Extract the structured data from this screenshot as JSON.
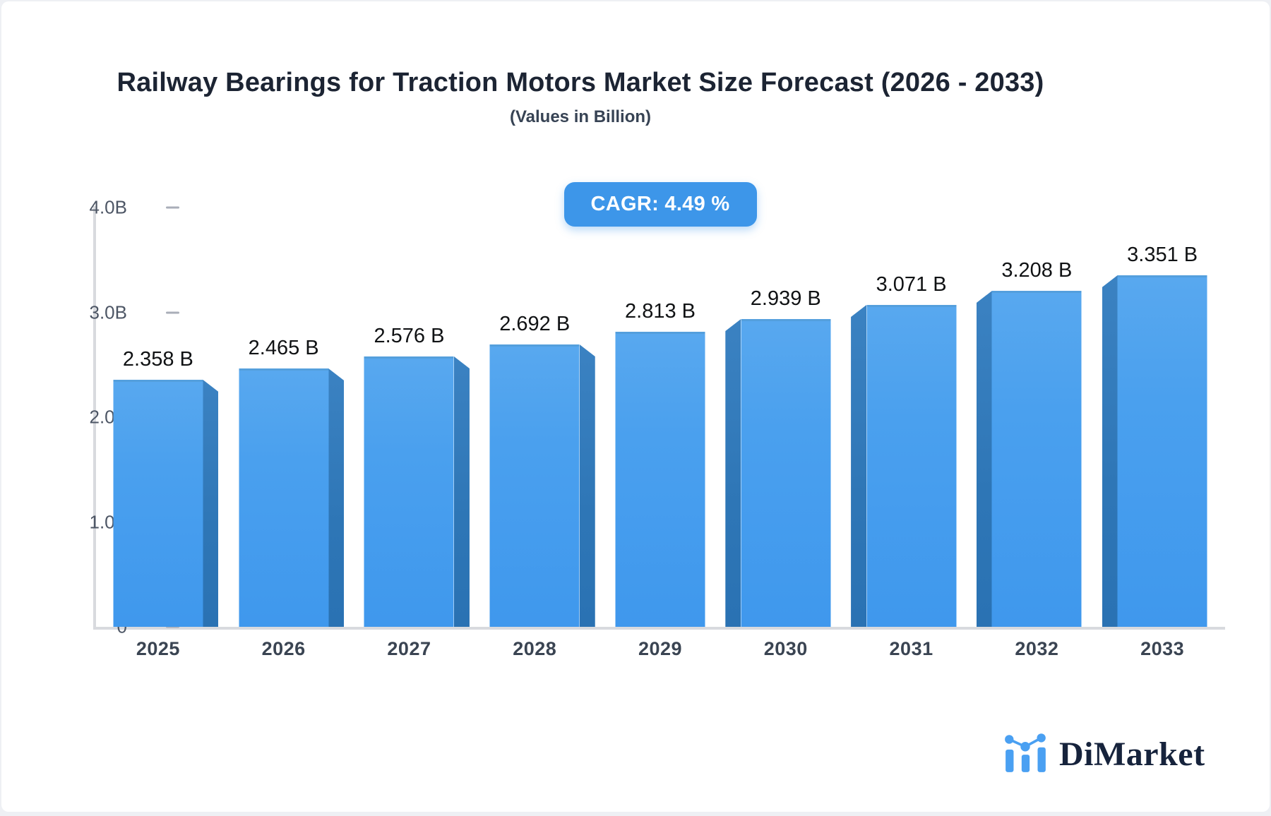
{
  "title": "Railway Bearings for Traction Motors Market Size Forecast (2026 - 2033)",
  "subtitle": "(Values in Billion)",
  "cagr_badge": "CAGR: 4.49 %",
  "brand": {
    "name": "DiMarket"
  },
  "colors": {
    "badge_bg": "#3d96e9",
    "bar_face_top": "#58a8ef",
    "bar_face_bottom": "#3f98ed",
    "bar_side": "#2e76b6",
    "axis_line": "#d8dade",
    "tick_dash": "#a9aeb8",
    "y_label": "#4d5665",
    "x_label": "#3a4452",
    "value_label": "#101214",
    "title_color": "#1c2433",
    "logo_blue": "#4aa0f2",
    "logo_text": "#16233c"
  },
  "chart_data": {
    "type": "bar",
    "title": "Railway Bearings for Traction Motors Market Size Forecast (2026 - 2033)",
    "subtitle": "(Values in Billion)",
    "categories": [
      "2025",
      "2026",
      "2027",
      "2028",
      "2029",
      "2030",
      "2031",
      "2032",
      "2033"
    ],
    "values": [
      2.358,
      2.465,
      2.576,
      2.692,
      2.813,
      2.939,
      3.071,
      3.208,
      3.351
    ],
    "value_labels": [
      "2.358 B",
      "2.465 B",
      "2.576 B",
      "2.692 B",
      "2.813 B",
      "2.939 B",
      "3.071 B",
      "3.208 B",
      "3.351 B"
    ],
    "unit": "Billion",
    "cagr_percent": 4.49,
    "xlabel": "",
    "ylabel": "",
    "ylim": [
      0,
      4.0
    ],
    "yticks": [
      {
        "label": "4.0B",
        "value": 4.0
      },
      {
        "label": "3.0B",
        "value": 3.0
      },
      {
        "label": "2.0B",
        "value": 2.0
      },
      {
        "label": "1.0B",
        "value": 1.0
      },
      {
        "label": "0",
        "value": 0.0
      }
    ],
    "grid": false,
    "legend": false,
    "layout": {
      "bar_3d_depth_side": [
        "right",
        "right",
        "right",
        "right",
        "none",
        "left",
        "left",
        "left",
        "left"
      ]
    }
  }
}
